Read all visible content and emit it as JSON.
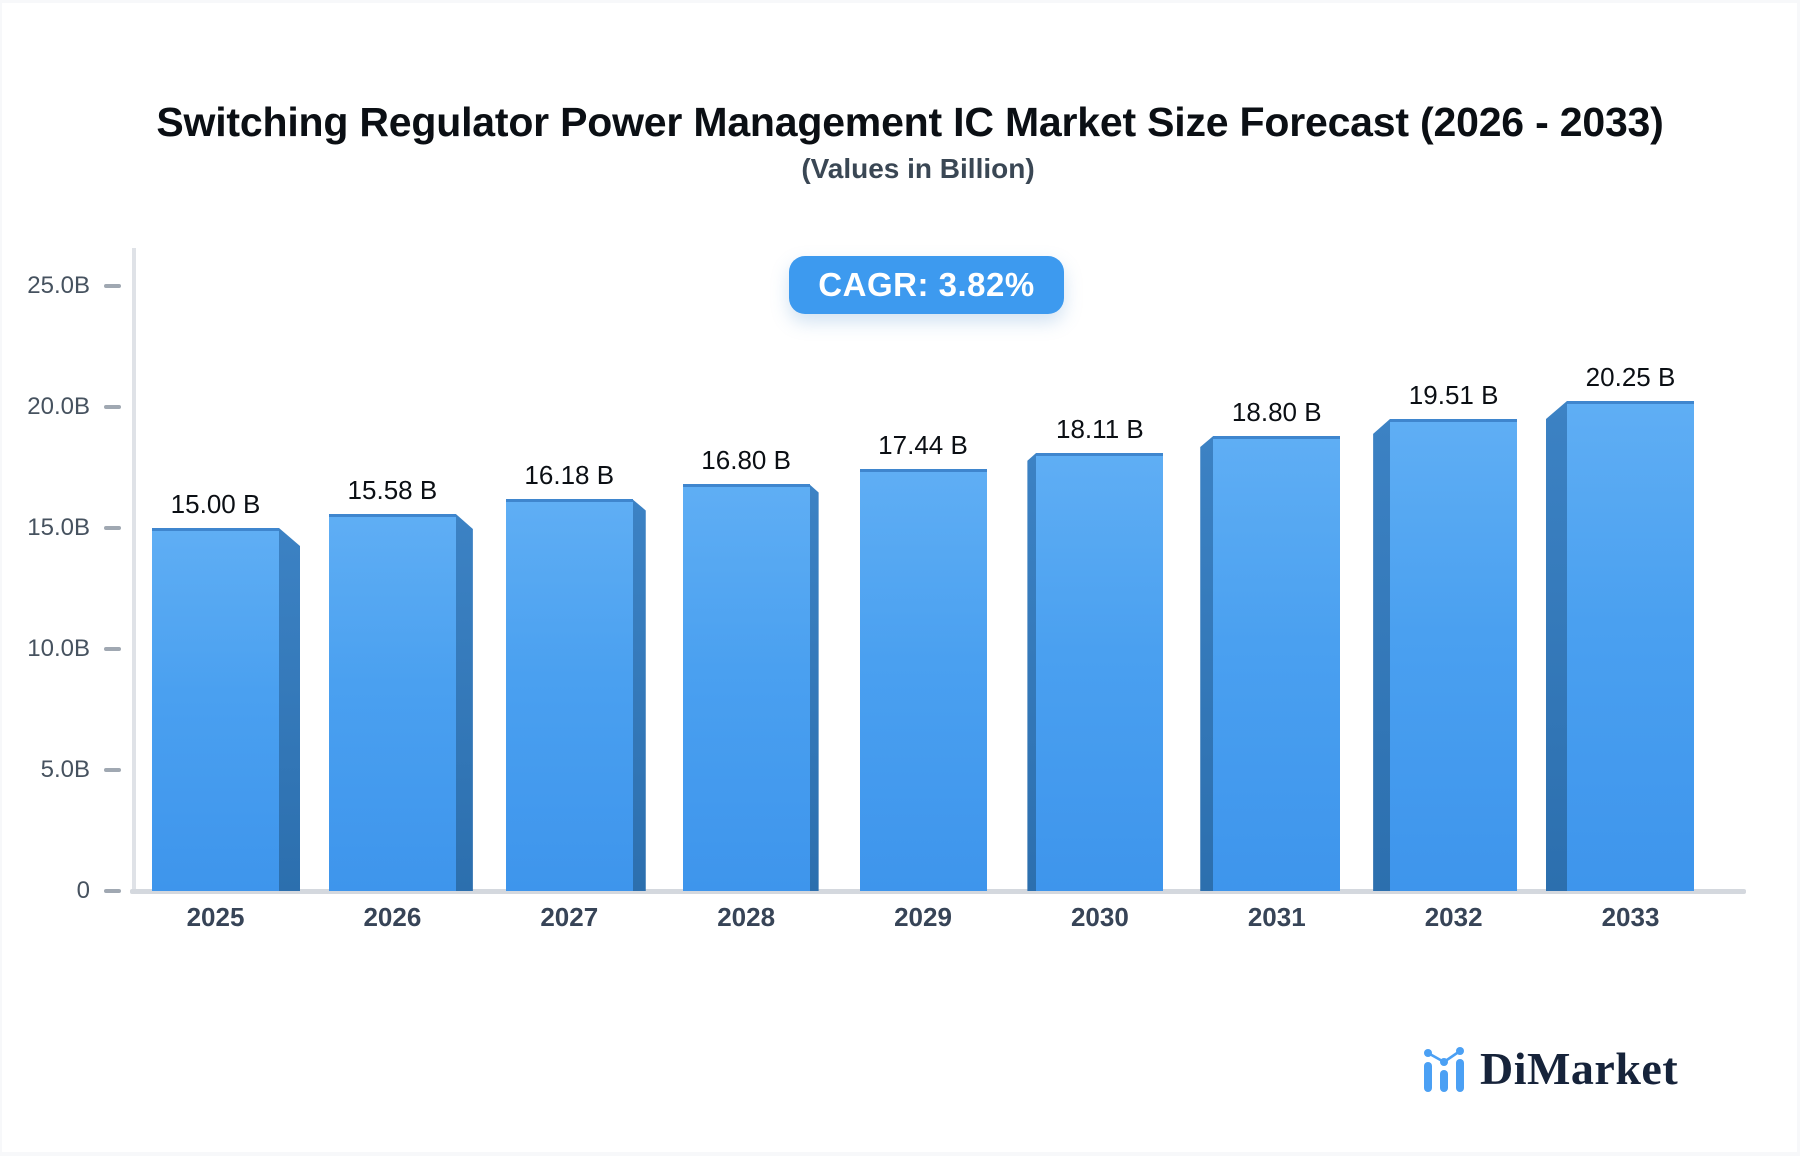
{
  "page": {
    "background": "#F7F8FA",
    "card_background": "#FFFFFF"
  },
  "header": {
    "title": "Switching Regulator Power Management IC Market Size Forecast (2026 - 2033)",
    "subtitle": "(Values in Billion)",
    "cagr_label": "CAGR: 3.82%"
  },
  "footer": {
    "brand": "DiMarket",
    "logo_icon": "mini-bar-chart-icon"
  },
  "colors": {
    "accent_blue": "#3D9AEF",
    "bar_face_top": "#5FAEF4",
    "bar_face_bottom": "#3E95EC",
    "bar_side": "#2E72B2",
    "bar_top_edge": "#3F86CE",
    "axis_line": "#DFE2E7",
    "baseline": "#D4D8DE",
    "tick_dash": "#A0A8B2",
    "tick_text": "#46525F",
    "year_text": "#374457",
    "value_text": "#0B0F14",
    "logo_navy": "#16233A"
  },
  "chart_data": {
    "type": "bar",
    "title": "Switching Regulator Power Management IC Market Size Forecast (2026 - 2033)",
    "subtitle": "(Values in Billion)",
    "annotation": "CAGR: 3.82%",
    "categories": [
      "2025",
      "2026",
      "2027",
      "2028",
      "2029",
      "2030",
      "2031",
      "2032",
      "2033"
    ],
    "values": [
      15.0,
      15.58,
      16.18,
      16.8,
      17.44,
      18.11,
      18.8,
      19.51,
      20.25
    ],
    "value_labels": [
      "15.00 B",
      "15.58 B",
      "16.18 B",
      "16.80 B",
      "17.44 B",
      "18.11 B",
      "18.80 B",
      "19.51 B",
      "20.25 B"
    ],
    "xlabel": "",
    "ylabel": "",
    "ylim": [
      0,
      25
    ],
    "yticks": [
      {
        "label": "0",
        "value": 0
      },
      {
        "label": "5.0B",
        "value": 5
      },
      {
        "label": "10.0B",
        "value": 10
      },
      {
        "label": "15.0B",
        "value": 15
      },
      {
        "label": "20.0B",
        "value": 20
      },
      {
        "label": "25.0B",
        "value": 25
      }
    ],
    "grid": false,
    "legend": false,
    "style": "3d-perspective-bars"
  }
}
